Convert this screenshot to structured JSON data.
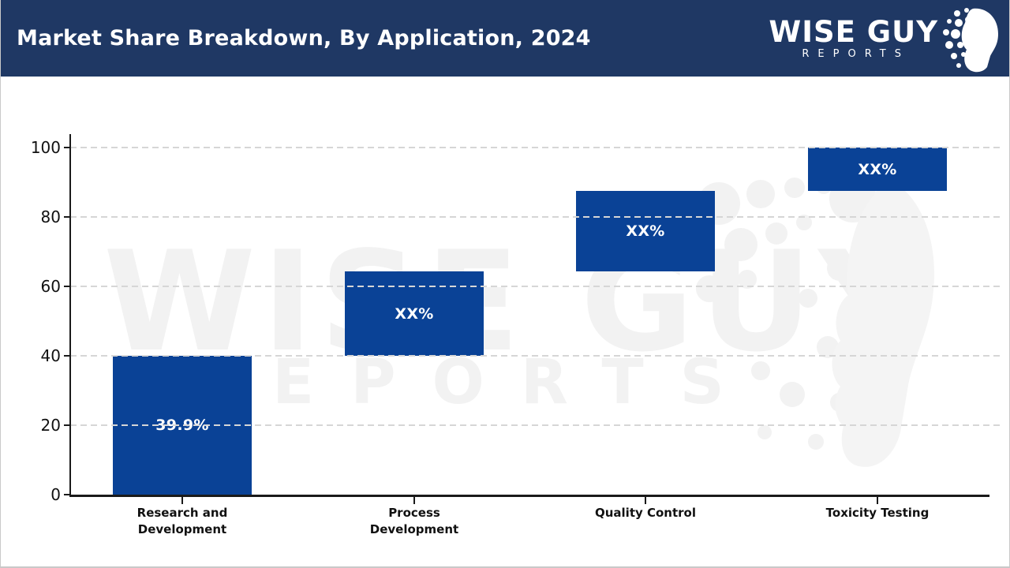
{
  "header": {
    "title": "Market Share Breakdown, By Application, 2024",
    "logo": {
      "line1": "WISE GUY",
      "line2": "REPORTS"
    }
  },
  "watermark": {
    "line1": "WISE GUY",
    "line2": "REPORTS"
  },
  "chart_data": {
    "type": "bar",
    "subtype": "waterfall",
    "title": "Market Share Breakdown, By Application, 2024",
    "xlabel": "",
    "ylabel": "",
    "ylim": [
      0,
      100
    ],
    "yticks": [
      0,
      20,
      40,
      60,
      80,
      100
    ],
    "grid": "horizontal-dashed",
    "legend": "none",
    "bar_color": "#0a4296",
    "bar_label_color": "#ffffff",
    "categories": [
      "Research and Development",
      "Process Development",
      "Quality Control",
      "Toxicity Testing"
    ],
    "segments": [
      {
        "category": "Research and Development",
        "start": 0,
        "end": 39.9,
        "value": 39.9,
        "label": "39.9%"
      },
      {
        "category": "Process Development",
        "start": 39.9,
        "end": 64.4,
        "value": 24.5,
        "label": "XX%"
      },
      {
        "category": "Quality Control",
        "start": 64.4,
        "end": 87.5,
        "value": 23.1,
        "label": "XX%"
      },
      {
        "category": "Toxicity Testing",
        "start": 87.5,
        "end": 100,
        "value": 12.5,
        "label": "XX%"
      }
    ]
  }
}
